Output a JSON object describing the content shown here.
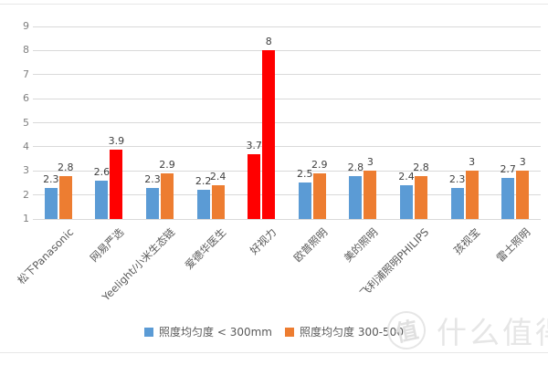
{
  "chart_data": {
    "type": "bar",
    "title": "",
    "categories": [
      "松下Panasonic",
      "网易严选",
      "Yeelight/小米生态链",
      "爱德华医生",
      "好视力",
      "欧普照明",
      "美的照明",
      "飞利浦照明PHILIPS",
      "孩视宝",
      "雷士照明"
    ],
    "series": [
      {
        "name": "照度均匀度 < 300mm",
        "color": "#5B9BD5",
        "values": [
          2.3,
          2.6,
          2.3,
          2.2,
          3.7,
          2.5,
          2.8,
          2.4,
          2.3,
          2.7
        ],
        "labels": [
          "2.3",
          "2.6",
          "2.3",
          "2.2",
          "3.7",
          "2.5",
          "2.8",
          "2.4",
          "2.3",
          "2.7"
        ],
        "bar_colors": [
          "#5B9BD5",
          "#5B9BD5",
          "#5B9BD5",
          "#5B9BD5",
          "#FF0000",
          "#5B9BD5",
          "#5B9BD5",
          "#5B9BD5",
          "#5B9BD5",
          "#5B9BD5"
        ]
      },
      {
        "name": "照度均匀度 300-500",
        "color": "#ED7D31",
        "values": [
          2.8,
          3.9,
          2.9,
          2.4,
          8,
          2.9,
          3,
          2.8,
          3,
          3
        ],
        "labels": [
          "2.8",
          "3.9",
          "2.9",
          "2.4",
          "8",
          "2.9",
          "3",
          "2.8",
          "3",
          "3"
        ],
        "bar_colors": [
          "#ED7D31",
          "#FF0000",
          "#ED7D31",
          "#ED7D31",
          "#FF0000",
          "#ED7D31",
          "#ED7D31",
          "#ED7D31",
          "#ED7D31",
          "#ED7D31"
        ]
      }
    ],
    "ylim": [
      1,
      9
    ],
    "yticks": [
      "1",
      "2",
      "3",
      "4",
      "5",
      "6",
      "7",
      "8",
      "9"
    ],
    "grid": true,
    "legend_position": "bottom",
    "highlight_color": "#FF0000",
    "xlabel": "",
    "ylabel": ""
  },
  "watermark": {
    "logo_char": "值",
    "text": "什么值得买"
  },
  "colors": {
    "bar_blue": "#5B9BD5",
    "bar_orange": "#ED7D31",
    "bar_red": "#FF0000",
    "gridline": "#D9D9D9",
    "axis_text": "#7F7F7F",
    "value_label_text": "#404040",
    "watermark_text": "#E3E3E3",
    "background": "#FFFFFF"
  }
}
